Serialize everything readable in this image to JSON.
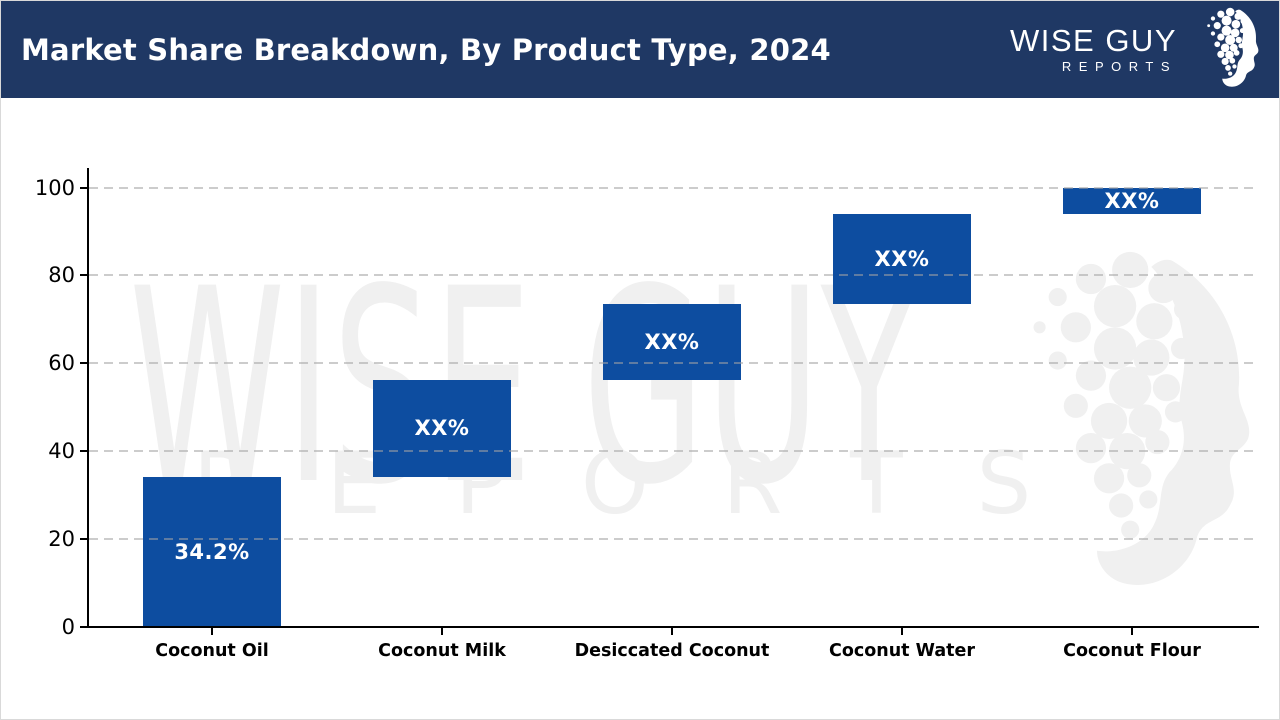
{
  "header": {
    "title": "Market Share Breakdown, By Product Type, 2024",
    "bg_color": "#1f3864",
    "logo": {
      "line1": "WISE GUY",
      "line2": "REPORTS"
    }
  },
  "watermark": {
    "line1": "WISE GUY",
    "line2": "REPORTS"
  },
  "chart_data": {
    "type": "bar",
    "subtype": "floating-waterfall",
    "title": "Market Share Breakdown, By Product Type, 2024",
    "categories": [
      "Coconut Oil",
      "Coconut Milk",
      "Desiccated Coconut",
      "Coconut Water",
      "Coconut Flour"
    ],
    "segments": [
      {
        "category": "Coconut Oil",
        "start": 0,
        "end": 34.2,
        "label": "34.2%"
      },
      {
        "category": "Coconut Milk",
        "start": 34.2,
        "end": 56.2,
        "label": "XX%"
      },
      {
        "category": "Desiccated Coconut",
        "start": 56.2,
        "end": 73.4,
        "label": "XX%"
      },
      {
        "category": "Coconut Water",
        "start": 73.4,
        "end": 93.9,
        "label": "XX%"
      },
      {
        "category": "Coconut Flour",
        "start": 93.9,
        "end": 100,
        "label": "XX%"
      }
    ],
    "xlabel": "",
    "ylabel": "",
    "ylim": [
      0,
      104.5
    ],
    "yticks": [
      0,
      20,
      40,
      60,
      80,
      100
    ],
    "grid": "horizontal-dashed",
    "legend": "none",
    "bar_color": "#0d4da0",
    "bar_label_color": "#ffffff",
    "axis_color": "#000000"
  }
}
